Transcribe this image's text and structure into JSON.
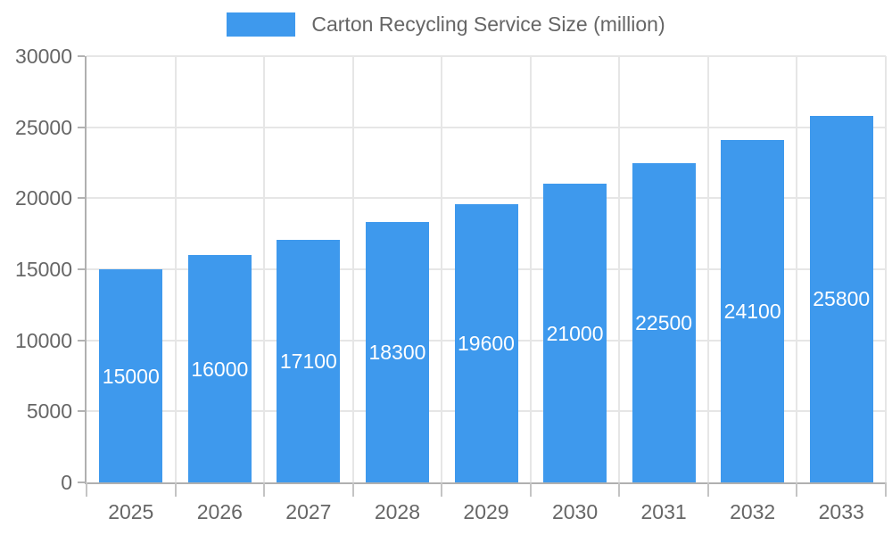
{
  "legend": {
    "label": "Carton Recycling Service Size (million)"
  },
  "colors": {
    "bar": "#3e99ed",
    "grid": "#e6e6e6",
    "axis": "#b0b0b0",
    "tick": "#c4c4c4",
    "text": "#666666",
    "bar_label": "#ffffff",
    "background": "#ffffff"
  },
  "chart_data": {
    "type": "bar",
    "title": "Carton Recycling Service Size (million)",
    "categories": [
      "2025",
      "2026",
      "2027",
      "2028",
      "2029",
      "2030",
      "2031",
      "2032",
      "2033"
    ],
    "values": [
      15000,
      16000,
      17100,
      18300,
      19600,
      21000,
      22500,
      24100,
      25800
    ],
    "xlabel": "",
    "ylabel": "",
    "ylim": [
      0,
      30000
    ],
    "ytick_step": 5000,
    "yticks": [
      0,
      5000,
      10000,
      15000,
      20000,
      25000,
      30000
    ],
    "grid": true,
    "legend_position": "top-center",
    "value_labels": "inside-center"
  }
}
